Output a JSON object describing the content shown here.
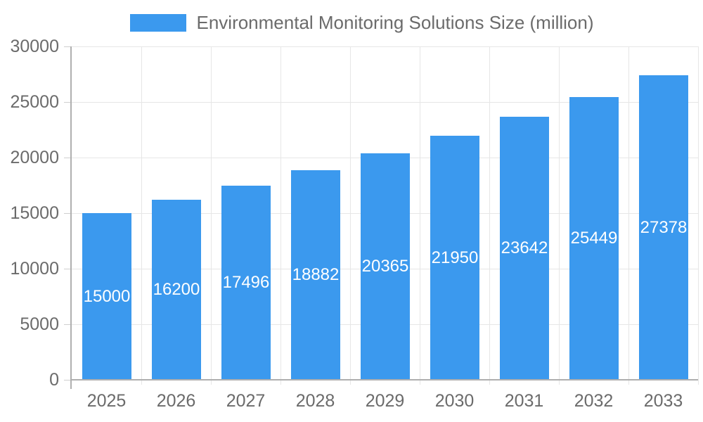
{
  "chart_data": {
    "type": "bar",
    "title": "Environmental Monitoring Solutions Size (million)",
    "categories": [
      "2025",
      "2026",
      "2027",
      "2028",
      "2029",
      "2030",
      "2031",
      "2032",
      "2033"
    ],
    "series": [
      {
        "name": "Environmental Monitoring Solutions Size (million)",
        "values": [
          15000,
          16200,
          17496,
          18882,
          20365,
          21950,
          23642,
          25449,
          27378
        ]
      }
    ],
    "xlabel": "",
    "ylabel": "",
    "ylim": [
      0,
      30000
    ],
    "y_ticks": [
      0,
      5000,
      10000,
      15000,
      20000,
      25000,
      30000
    ],
    "grid": true,
    "legend_position": "top-center",
    "value_label_position": "inside-middle"
  },
  "colors": {
    "bar": "#3B99EE",
    "text": "#6B6B6B",
    "grid_line": "#E6E6E6",
    "grid_dash": "#CFCFCF",
    "axis_line": "#AFAFAF",
    "value_label": "#FFFFFF",
    "background": "#FFFFFF"
  }
}
